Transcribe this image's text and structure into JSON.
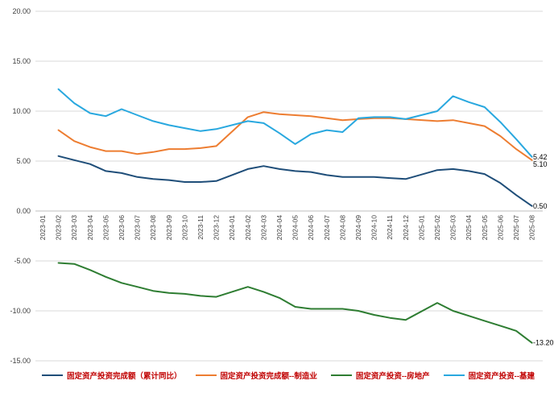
{
  "chart_data": {
    "type": "line",
    "title": "",
    "grid": true,
    "legend_position": "bottom",
    "legend_text_color": "#c00000",
    "x_categories": [
      "2023-01",
      "2023-02",
      "2023-03",
      "2023-04",
      "2023-05",
      "2023-06",
      "2023-07",
      "2023-08",
      "2023-09",
      "2023-10",
      "2023-11",
      "2023-12",
      "2024-01",
      "2024-02",
      "2024-03",
      "2024-04",
      "2024-05",
      "2024-06",
      "2024-07",
      "2024-08",
      "2024-09",
      "2024-10",
      "2024-11",
      "2024-12",
      "2025-01",
      "2025-02",
      "2025-03",
      "2025-04",
      "2025-05",
      "2025-06",
      "2025-07",
      "2025-08"
    ],
    "y_axis": {
      "min": -15,
      "max": 20,
      "step": 5,
      "tick_labels": [
        "20.00",
        "15.00",
        "10.00",
        "5.00",
        "0.00",
        "-5.00",
        "-10.00",
        "-15.00"
      ]
    },
    "series": [
      {
        "name": "固定资产投资完成额（累计同比）",
        "color": "#1f4e79",
        "end_label": "0.50",
        "values": [
          null,
          5.5,
          5.1,
          4.7,
          4.0,
          3.8,
          3.4,
          3.2,
          3.1,
          2.9,
          2.9,
          3.0,
          null,
          4.2,
          4.5,
          4.2,
          4.0,
          3.9,
          3.6,
          3.4,
          3.4,
          3.4,
          3.3,
          3.2,
          null,
          4.1,
          4.2,
          4.0,
          3.7,
          2.8,
          1.6,
          0.5
        ]
      },
      {
        "name": "固定资产投资完成额--制造业",
        "color": "#ed7d31",
        "end_label": "5.10",
        "values": [
          null,
          8.1,
          7.0,
          6.4,
          6.0,
          6.0,
          5.7,
          5.9,
          6.2,
          6.2,
          6.3,
          6.5,
          null,
          9.4,
          9.9,
          9.7,
          9.6,
          9.5,
          9.3,
          9.1,
          9.2,
          9.3,
          9.3,
          9.2,
          null,
          9.0,
          9.1,
          8.8,
          8.5,
          7.5,
          6.2,
          5.1
        ]
      },
      {
        "name": "固定资产投资--房地产",
        "color": "#2e7d32",
        "end_label": "-13.20",
        "values": [
          null,
          -5.2,
          -5.3,
          -5.9,
          -6.6,
          -7.2,
          -7.6,
          -8.0,
          -8.2,
          -8.3,
          -8.5,
          -8.6,
          null,
          -7.6,
          -8.1,
          -8.7,
          -9.6,
          -9.8,
          -9.8,
          -9.8,
          -10.0,
          -10.4,
          -10.7,
          -10.9,
          null,
          -9.2,
          -10.0,
          -10.5,
          -11.0,
          -11.5,
          -12.0,
          -13.2
        ]
      },
      {
        "name": "固定资产投资--基建",
        "color": "#29a8df",
        "end_label": "5.42",
        "values": [
          null,
          12.2,
          10.8,
          9.8,
          9.5,
          10.2,
          9.6,
          9.0,
          8.6,
          8.3,
          8.0,
          8.2,
          null,
          9.0,
          8.8,
          7.8,
          6.7,
          7.7,
          8.1,
          7.9,
          9.3,
          9.4,
          9.4,
          9.2,
          null,
          10.0,
          11.5,
          10.9,
          10.4,
          8.9,
          7.2,
          5.42
        ]
      }
    ]
  }
}
